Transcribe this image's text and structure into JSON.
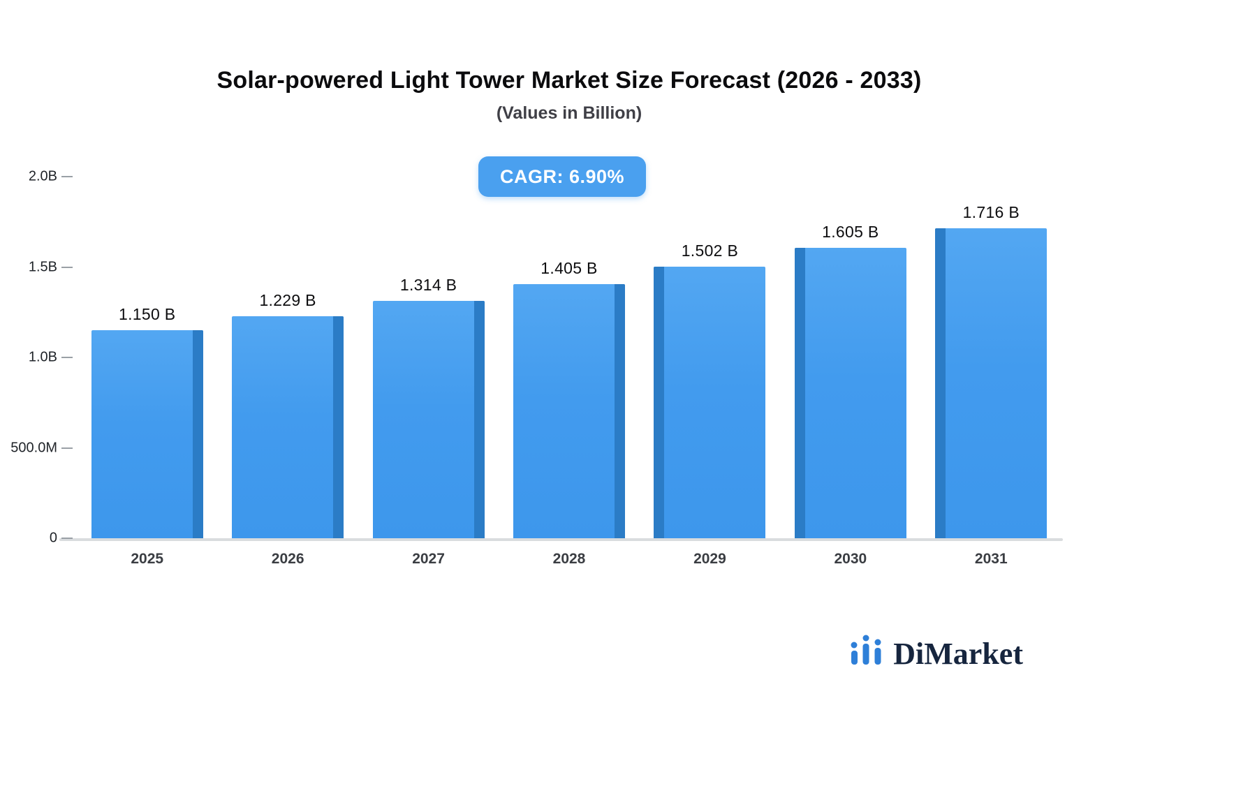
{
  "title": "Solar-powered Light Tower Market Size Forecast (2026 - 2033)",
  "subtitle": "(Values in Billion)",
  "badge": {
    "label": "CAGR: 6.90%"
  },
  "chart_data": {
    "type": "bar",
    "title": "Solar-powered Light Tower Market Size Forecast (2026 - 2033)",
    "subtitle": "(Values in Billion)",
    "xlabel": "",
    "ylabel": "",
    "categories": [
      "2025",
      "2026",
      "2027",
      "2028",
      "2029",
      "2030",
      "2031"
    ],
    "values": [
      1.15,
      1.229,
      1.314,
      1.405,
      1.502,
      1.605,
      1.716
    ],
    "value_labels": [
      "1.150 B",
      "1.229 B",
      "1.314 B",
      "1.405 B",
      "1.502 B",
      "1.605 B",
      "1.716 B"
    ],
    "ylim": [
      0,
      2.0
    ],
    "yticks": [
      {
        "value": 0.0,
        "label": "0"
      },
      {
        "value": 0.5,
        "label": "500.0M"
      },
      {
        "value": 1.0,
        "label": "1.0B"
      },
      {
        "value": 1.5,
        "label": "1.5B"
      },
      {
        "value": 2.0,
        "label": "2.0B"
      }
    ],
    "grid": false,
    "legend": "none",
    "bar_color": "#429bee",
    "bar_side_color": "#2b7cc6",
    "cagr": "CAGR: 6.90%"
  },
  "logo": {
    "text": "DiMarket",
    "icon": "bar-chart-icon",
    "accent_color": "#2e7fd8"
  }
}
